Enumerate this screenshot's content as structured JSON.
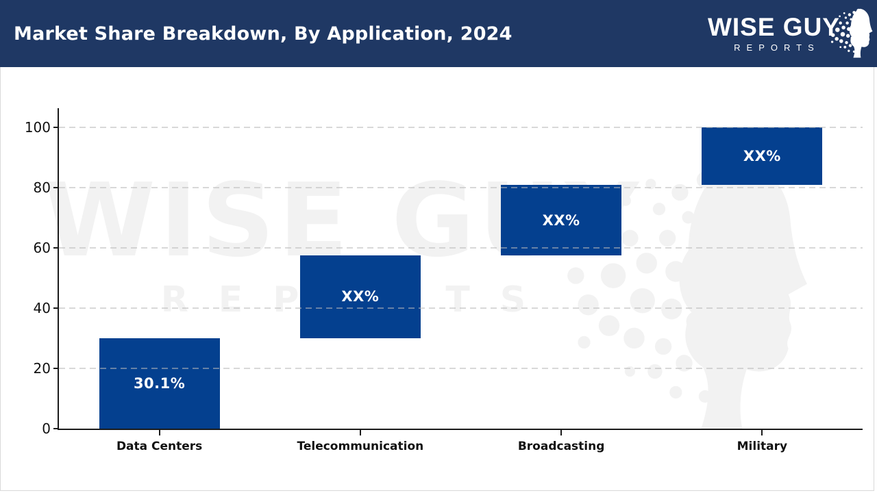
{
  "header": {
    "title": "Market Share Breakdown, By Application, 2024",
    "bg_color": "#1F3864",
    "logo": {
      "name": "WISE GUY",
      "tagline": "REPORTS"
    }
  },
  "watermark": {
    "name": "WISE GUY",
    "tagline": "REPORTS"
  },
  "chart_data": {
    "type": "bar",
    "subtype": "waterfall",
    "title": "Market Share Breakdown, By Application, 2024",
    "categories": [
      "Data Centers",
      "Telecommunication",
      "Broadcasting",
      "Military"
    ],
    "series": [
      {
        "name": "Market Share (%)",
        "segments": [
          {
            "start": 0,
            "end": 30.1,
            "label": "30.1%"
          },
          {
            "start": 30.1,
            "end": 57.5,
            "label": "XX%"
          },
          {
            "start": 57.5,
            "end": 80.8,
            "label": "XX%"
          },
          {
            "start": 80.8,
            "end": 100,
            "label": "XX%"
          }
        ]
      }
    ],
    "xlabel": "",
    "ylabel": "",
    "ylim": [
      0,
      100
    ],
    "yticks": [
      0,
      20,
      40,
      60,
      80,
      100
    ],
    "grid": "horizontal-dashed",
    "legend": "none",
    "bar_color": "#04408F",
    "value_label_color": "#FFFFFF",
    "axis_color": "#1a1a1a"
  }
}
